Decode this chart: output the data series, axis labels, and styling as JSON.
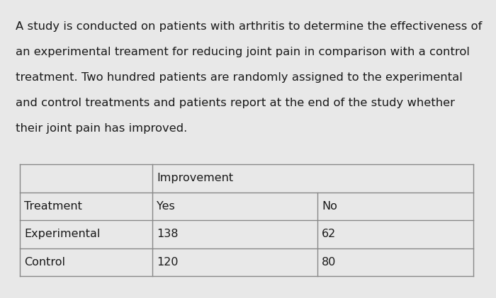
{
  "lines": [
    "A study is conducted on patients with arthritis to determine the effectiveness of",
    "an experimental treament for reducing joint pain in comparison with a control",
    "treatment. Two hundred patients are randomly assigned to the experimental",
    "and control treatments and patients report at the end of the study whether",
    "their joint pain has improved."
  ],
  "table": {
    "header_group": "Improvement",
    "rows": [
      [
        "",
        "Treatment",
        "Yes",
        "No"
      ],
      [
        "",
        "Experimental",
        "138",
        "62"
      ],
      [
        "",
        "Control",
        "120",
        "80"
      ]
    ]
  },
  "bg_color": "#e8e8e8",
  "table_bg": "#e0e0e0",
  "text_color": "#1a1a1a",
  "font_size_para": 11.8,
  "font_size_table": 11.5,
  "fig_width": 7.0,
  "fig_height": 4.21
}
